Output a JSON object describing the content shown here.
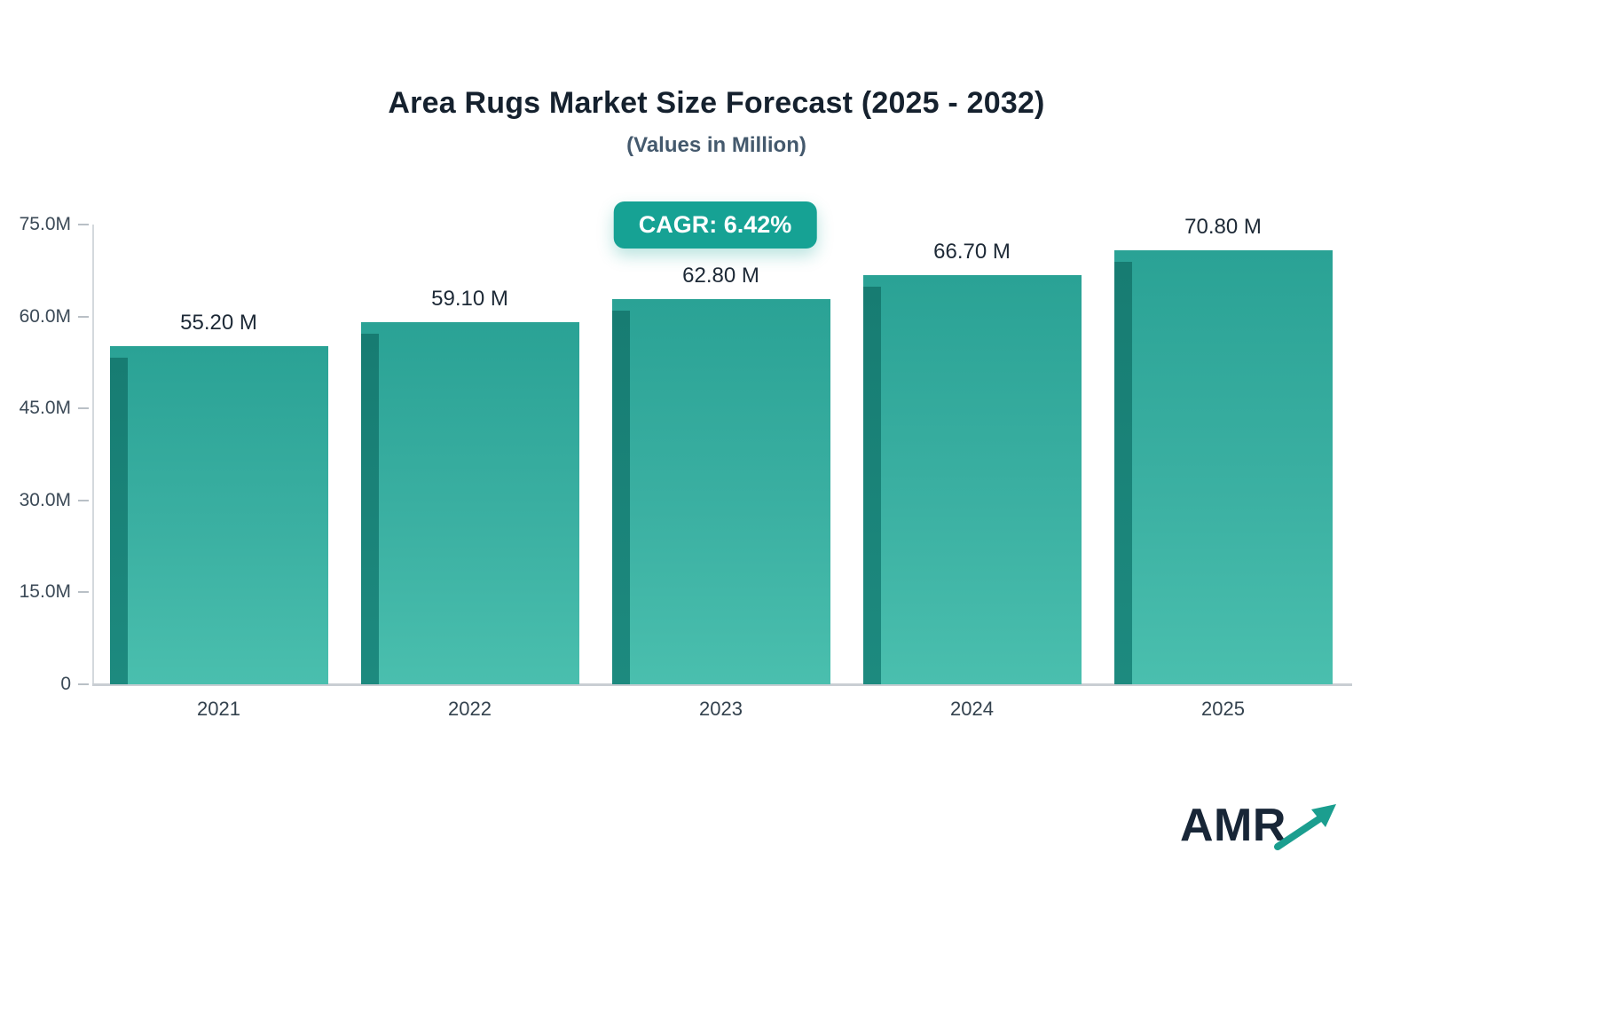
{
  "chart_data": {
    "type": "bar",
    "title": "Area Rugs Market Size Forecast (2025 - 2032)",
    "subtitle": "(Values in Million)",
    "cagr_label": "CAGR: 6.42%",
    "categories": [
      "2021",
      "2022",
      "2023",
      "2024",
      "2025"
    ],
    "values": [
      55.2,
      59.1,
      62.8,
      66.7,
      70.8
    ],
    "value_labels": [
      "55.20 M",
      "59.10 M",
      "62.80 M",
      "66.70 M",
      "70.80 M"
    ],
    "xlabel": "",
    "ylabel": "",
    "ylim": [
      0,
      75
    ],
    "y_ticks": [
      {
        "value": 75,
        "label": "75.0M"
      },
      {
        "value": 60,
        "label": "60.0M"
      },
      {
        "value": 45,
        "label": "45.0M"
      },
      {
        "value": 30,
        "label": "30.0M"
      },
      {
        "value": 15,
        "label": "15.0M"
      },
      {
        "value": 0,
        "label": "0"
      }
    ],
    "legend": "none",
    "grid": "off",
    "colors": {
      "bar_top": "#2aa295",
      "bar_bottom": "#4abfae",
      "bar_side_shade": "#177c72",
      "badge_background": "#16a294",
      "title_text": "#15212e",
      "subtitle_text": "#44596d",
      "axis_text": "#3c4a57",
      "logo_text": "#182637",
      "logo_arrow": "#1b9e8f"
    }
  },
  "logo": {
    "text": "AMR"
  }
}
